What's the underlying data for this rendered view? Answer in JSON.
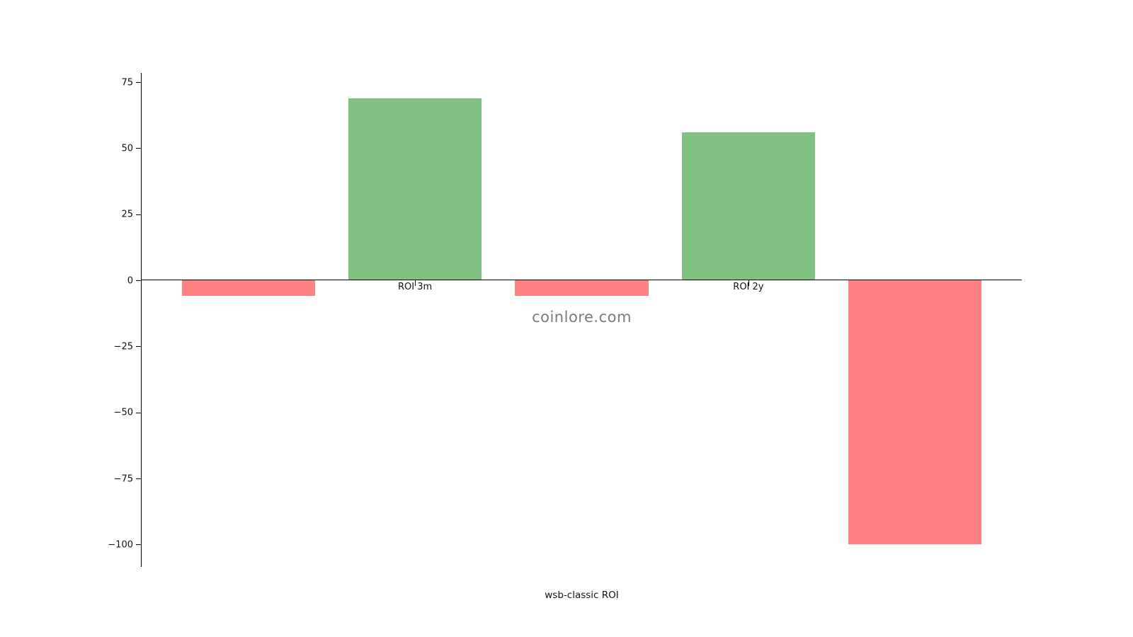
{
  "chart_data": {
    "type": "bar",
    "title": "",
    "xlabel": "wsb-classic ROI",
    "ylabel": "",
    "categories": [
      "",
      "ROI 3m",
      "",
      "ROI 2y",
      ""
    ],
    "values": [
      -5.9,
      69,
      -5.9,
      56,
      -100
    ],
    "yticks": [
      75,
      50,
      25,
      0,
      -25,
      -50,
      -75,
      -100
    ],
    "ylim": [
      -108.5,
      78.5
    ],
    "xlim": [
      -0.64,
      4.64
    ],
    "bar_width": 0.8,
    "grid": false,
    "legend": false,
    "watermark": "coinlore.com",
    "colors": {
      "positive": "#80c080",
      "negative": "#ff8181",
      "axis": "#000000",
      "tick_label": "#111111",
      "watermark": "#7a7a7a"
    }
  }
}
